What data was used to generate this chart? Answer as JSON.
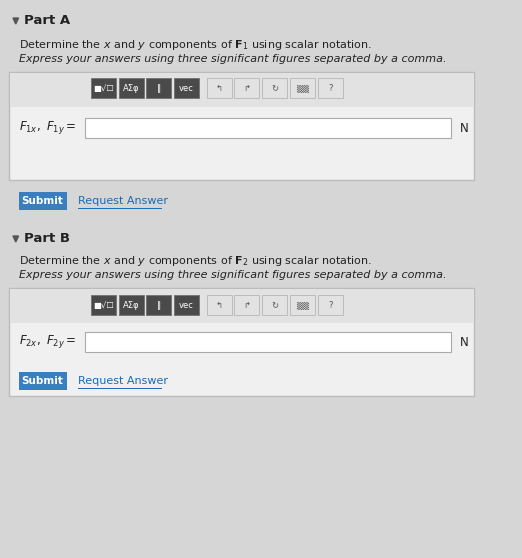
{
  "bg_color": "#d6d6d6",
  "panel_bg": "#f0f0f0",
  "white": "#ffffff",
  "part_a_label": "Part A",
  "part_b_label": "Part B",
  "part_a_desc1": "Determine the $x$ and $y$ components of $\\mathbf{F}_1$ using scalar notation.",
  "part_a_desc2": "Express your answers using three significant figures separated by a comma.",
  "part_b_desc1": "Determine the $x$ and $y$ components of $\\mathbf{F}_2$ using scalar notation.",
  "part_b_desc2": "Express your answers using three significant figures separated by a comma.",
  "input_label_a": "$F_{1x},\\ F_{1y}=$",
  "input_label_b": "$F_{2x},\\ F_{2y}=$",
  "unit_label": "N",
  "submit_label": "Submit",
  "request_label": "Request Answer",
  "submit_bg": "#3a7ebf",
  "submit_text_color": "#ffffff",
  "toolbar_btn_bg": "#4a4a4a",
  "toolbar_btn_text": "#ffffff",
  "input_box_bg": "#ffffff",
  "input_box_border": "#aaaaaa",
  "outer_panel_border": "#bbbbbb"
}
